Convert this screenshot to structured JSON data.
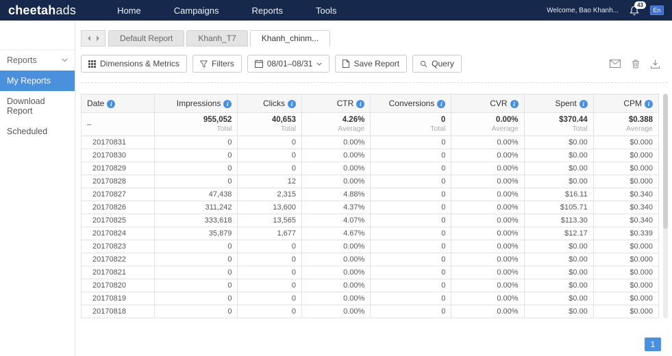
{
  "navbar": {
    "brand": {
      "bold": "cheetah",
      "light": "ads"
    },
    "items": [
      {
        "label": "Home"
      },
      {
        "label": "Campaigns"
      },
      {
        "label": "Reports"
      },
      {
        "label": "Tools"
      }
    ],
    "welcome": "Welcome,",
    "username": "Bao Khanh...",
    "notification_count": "43",
    "language": "En"
  },
  "sidebar": {
    "section_label": "Reports",
    "items": [
      {
        "label": "My Reports",
        "active": true
      },
      {
        "label": "Download Report",
        "active": false
      },
      {
        "label": "Scheduled",
        "active": false
      }
    ]
  },
  "tabs": [
    {
      "label": "Default Report",
      "active": false
    },
    {
      "label": "Khanh_T7",
      "active": false
    },
    {
      "label": "Khanh_chinm...",
      "active": true
    }
  ],
  "toolbar": {
    "dimensions_metrics_label": "Dimensions & Metrics",
    "filters_label": "Filters",
    "date_range_label": "08/01–08/31",
    "save_report_label": "Save Report",
    "query_label": "Query"
  },
  "table": {
    "columns": [
      "Date",
      "Impressions",
      "Clicks",
      "CTR",
      "Conversions",
      "CVR",
      "Spent",
      "CPM"
    ],
    "totals": {
      "date": "–",
      "values": [
        "955,052",
        "40,653",
        "4.26%",
        "0",
        "0.00%",
        "$370.44",
        "$0.388"
      ],
      "sublabels": [
        "Total",
        "Total",
        "Average",
        "Total",
        "Average",
        "Total",
        "Average"
      ]
    },
    "rows": [
      [
        "20170831",
        "0",
        "0",
        "0.00%",
        "0",
        "0.00%",
        "$0.00",
        "$0.000"
      ],
      [
        "20170830",
        "0",
        "0",
        "0.00%",
        "0",
        "0.00%",
        "$0.00",
        "$0.000"
      ],
      [
        "20170829",
        "0",
        "0",
        "0.00%",
        "0",
        "0.00%",
        "$0.00",
        "$0.000"
      ],
      [
        "20170828",
        "0",
        "12",
        "0.00%",
        "0",
        "0.00%",
        "$0.00",
        "$0.000"
      ],
      [
        "20170827",
        "47,438",
        "2,315",
        "4.88%",
        "0",
        "0.00%",
        "$16.11",
        "$0.340"
      ],
      [
        "20170826",
        "311,242",
        "13,600",
        "4.37%",
        "0",
        "0.00%",
        "$105.71",
        "$0.340"
      ],
      [
        "20170825",
        "333,618",
        "13,565",
        "4.07%",
        "0",
        "0.00%",
        "$113.30",
        "$0.340"
      ],
      [
        "20170824",
        "35,879",
        "1,677",
        "4.67%",
        "0",
        "0.00%",
        "$12.17",
        "$0.339"
      ],
      [
        "20170823",
        "0",
        "0",
        "0.00%",
        "0",
        "0.00%",
        "$0.00",
        "$0.000"
      ],
      [
        "20170822",
        "0",
        "0",
        "0.00%",
        "0",
        "0.00%",
        "$0.00",
        "$0.000"
      ],
      [
        "20170821",
        "0",
        "0",
        "0.00%",
        "0",
        "0.00%",
        "$0.00",
        "$0.000"
      ],
      [
        "20170820",
        "0",
        "0",
        "0.00%",
        "0",
        "0.00%",
        "$0.00",
        "$0.000"
      ],
      [
        "20170819",
        "0",
        "0",
        "0.00%",
        "0",
        "0.00%",
        "$0.00",
        "$0.000"
      ],
      [
        "20170818",
        "0",
        "0",
        "0.00%",
        "0",
        "0.00%",
        "$0.00",
        "$0.000"
      ]
    ]
  },
  "pagination": {
    "page": "1"
  },
  "colors": {
    "navbar_bg": "#16294d",
    "accent_blue": "#4a90e2",
    "sidebar_active_bg": "#4a90dd"
  }
}
